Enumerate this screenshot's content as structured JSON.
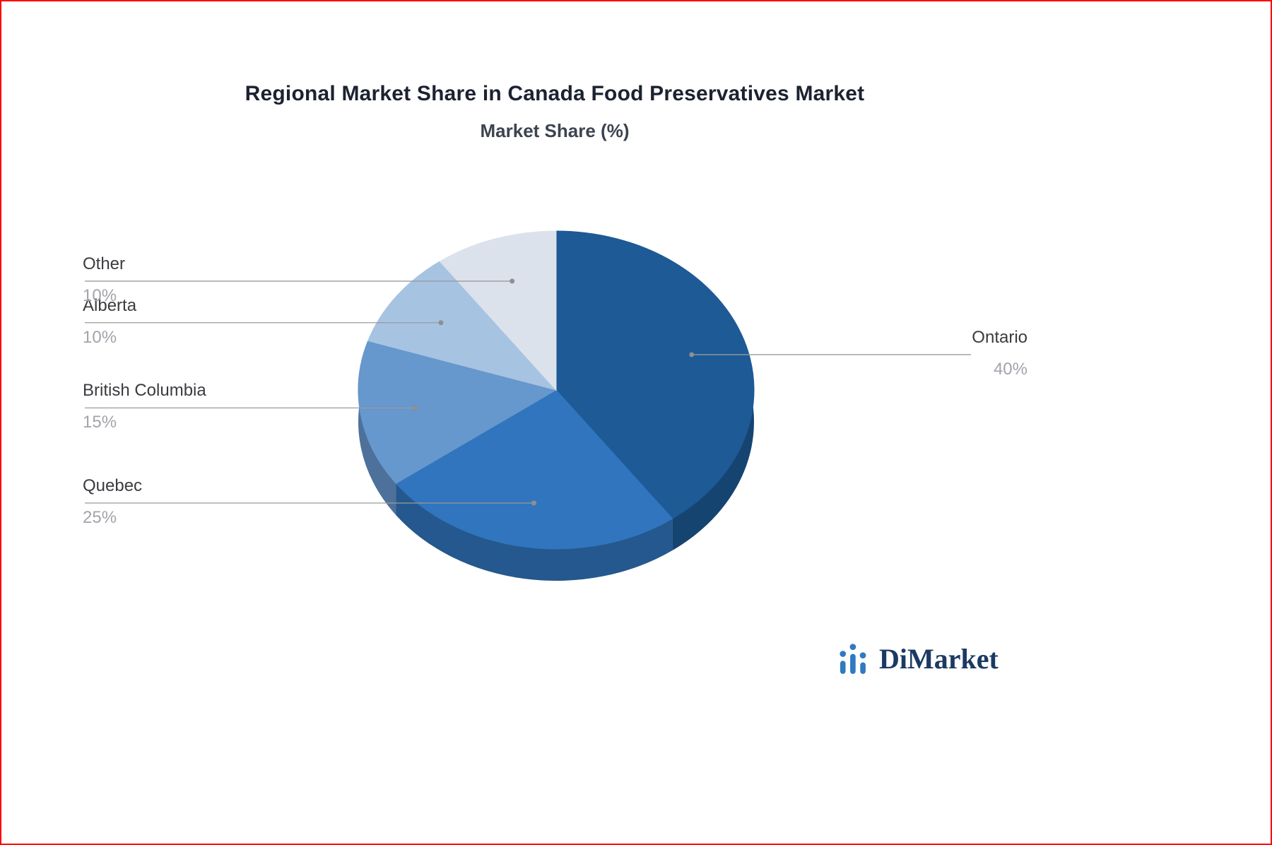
{
  "header": {
    "title": "Regional Market Share in Canada Food Preservatives Market",
    "subtitle": "Market Share (%)"
  },
  "chart_data": {
    "type": "pie",
    "title": "Regional Market Share in Canada Food Preservatives Market",
    "subtitle": "Market Share (%)",
    "unit": "%",
    "effect": "3d",
    "start_angle_deg": -90,
    "direction": "clockwise",
    "legend_position": "none",
    "labels_style": "leader-lines",
    "slices": [
      {
        "label": "Ontario",
        "value": 40,
        "display": "40%",
        "color": "#1d5a96"
      },
      {
        "label": "Quebec",
        "value": 25,
        "display": "25%",
        "color": "#3075bd"
      },
      {
        "label": "British Columbia",
        "value": 15,
        "display": "15%",
        "color": "#6697cd"
      },
      {
        "label": "Alberta",
        "value": 10,
        "display": "10%",
        "color": "#a7c3e2"
      },
      {
        "label": "Other",
        "value": 10,
        "display": "10%",
        "color": "#dbe2ec"
      }
    ],
    "leader_line_color": "#9b9b9b",
    "leader_dot_color": "#8f8f8f"
  },
  "branding": {
    "logo_text": "DiMarket",
    "logo_icon": "bar-chart-icon",
    "logo_color": "#2f7ac0"
  }
}
